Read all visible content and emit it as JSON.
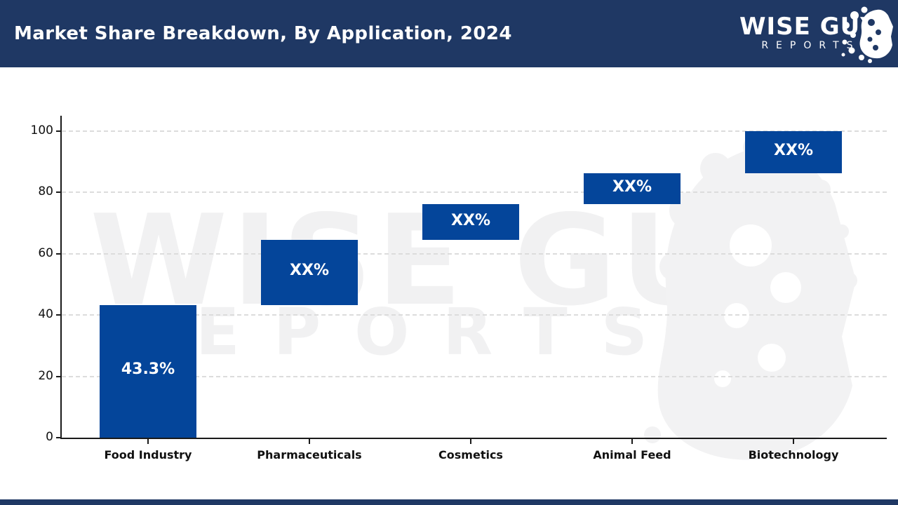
{
  "header": {
    "title": "Market Share Breakdown, By Application, 2024",
    "bg_color": "#1f3864",
    "logo": {
      "line1": "WISE GUY",
      "line2": "REPORTS"
    }
  },
  "watermark": {
    "line1": "WISE GUY",
    "line2": "REPORTS"
  },
  "footer": {
    "bg_color": "#1f3864"
  },
  "chart_data": {
    "type": "bar",
    "subtype": "waterfall",
    "title": "Market Share Breakdown, By Application, 2024",
    "categories": [
      "Food Industry",
      "Pharmaceuticals",
      "Cosmetics",
      "Animal Feed",
      "Biotechnology"
    ],
    "segments": [
      {
        "category": "Food Industry",
        "start": 0,
        "end": 43.3,
        "label": "43.3%"
      },
      {
        "category": "Pharmaceuticals",
        "start": 43.3,
        "end": 64.5,
        "label": "XX%"
      },
      {
        "category": "Cosmetics",
        "start": 64.5,
        "end": 76.2,
        "label": "XX%"
      },
      {
        "category": "Animal Feed",
        "start": 76.2,
        "end": 86.3,
        "label": "XX%"
      },
      {
        "category": "Biotechnology",
        "start": 86.3,
        "end": 100,
        "label": "XX%"
      }
    ],
    "yticks": [
      0,
      20,
      40,
      60,
      80,
      100
    ],
    "ylim": [
      0,
      104
    ],
    "xlabel": "",
    "ylabel": "",
    "bar_color": "#04459a",
    "bar_label_color": "#ffffff",
    "grid": {
      "horizontal": true,
      "style": "dashed",
      "color": "#dcdcdc"
    },
    "legend": "none"
  }
}
